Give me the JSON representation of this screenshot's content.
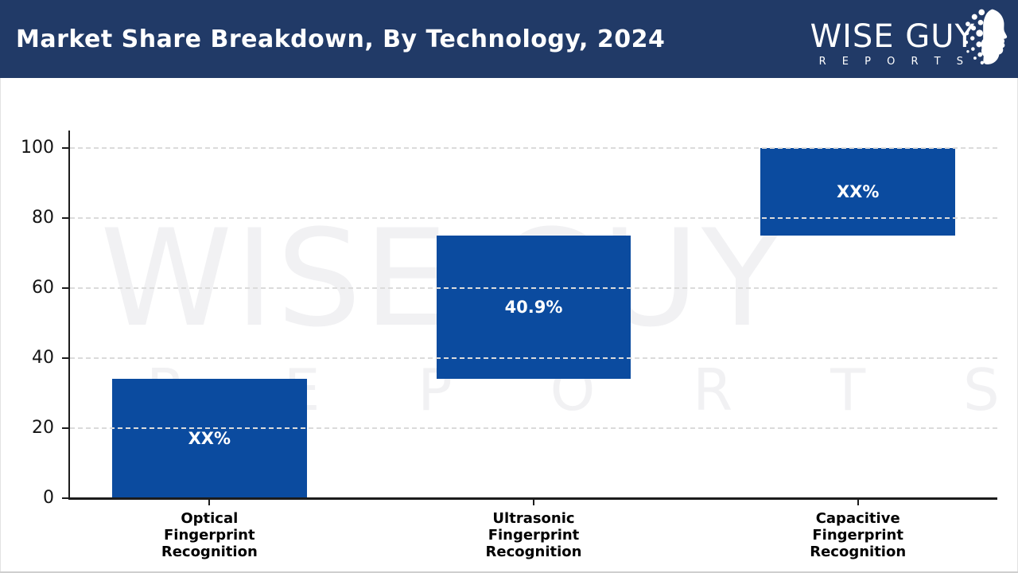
{
  "header": {
    "title": "Market Share Breakdown, By Technology, 2024",
    "logo": {
      "line1": "WISE GUY",
      "line2": "R E P O R T S"
    }
  },
  "watermark": {
    "line1": "WISE GUY",
    "line2": "R E P O R T S"
  },
  "colors": {
    "header_bg": "#213a67",
    "bar": "#0b4b9f",
    "bar_label": "#ffffff",
    "grid": "#dbdbdb",
    "axis": "#1c1c1c",
    "watermark": "#f1f1f3"
  },
  "chart_data": {
    "type": "bar",
    "subtype": "waterfall",
    "title": "Market Share Breakdown, By Technology, 2024",
    "categories": [
      "Optical\nFingerprint\nRecognition",
      "Ultrasonic\nFingerprint\nRecognition",
      "Capacitive\nFingerprint\nRecognition"
    ],
    "x": [
      0,
      1,
      2
    ],
    "bars": [
      {
        "label": "XX%",
        "start": 0,
        "end": 34.1
      },
      {
        "label": "40.9%",
        "start": 34.1,
        "end": 75
      },
      {
        "label": "XX%",
        "start": 75,
        "end": 100
      }
    ],
    "bar_width": 0.6,
    "xlim": [
      -0.43,
      2.43
    ],
    "ylim": [
      0,
      105
    ],
    "yticks": [
      0,
      20,
      40,
      60,
      80,
      100
    ],
    "grid": "horizontal-dashed",
    "legend_position": "none"
  }
}
